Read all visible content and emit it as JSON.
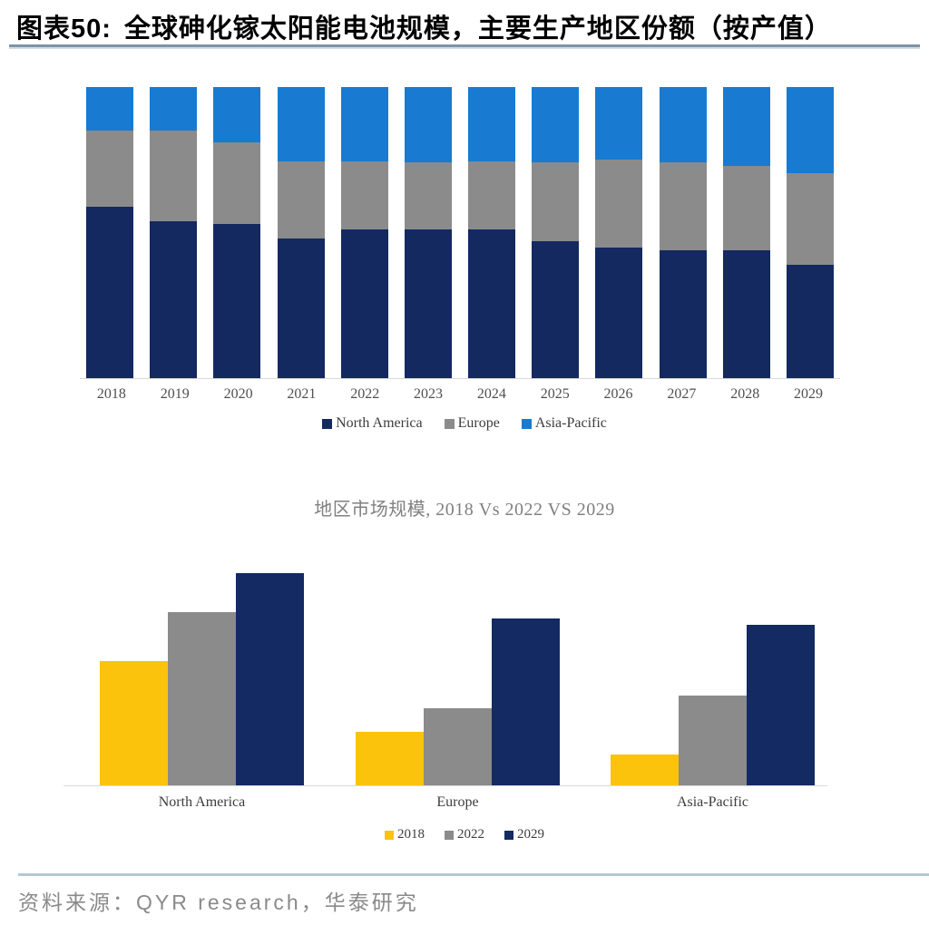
{
  "header": {
    "figure_label": "图表50:",
    "title": "全球砷化镓太阳能电池规模，主要生产地区份额（按产值）"
  },
  "chart_data": [
    {
      "type": "bar",
      "variant": "stacked-100-percent",
      "title": "",
      "categories": [
        "2018",
        "2019",
        "2020",
        "2021",
        "2022",
        "2023",
        "2024",
        "2025",
        "2026",
        "2027",
        "2028",
        "2029"
      ],
      "series": [
        {
          "name": "North America",
          "color": "#13296069",
          "values": [
            59,
            54,
            53,
            48,
            51,
            51,
            51,
            47,
            45,
            44,
            44,
            39
          ]
        },
        {
          "name": "Europe",
          "color": "#8B8B8B",
          "values": [
            26,
            31,
            28,
            26.5,
            23.5,
            23,
            23.5,
            27,
            30,
            30,
            29,
            31.5
          ]
        },
        {
          "name": "Asia-Pacific",
          "color": "#187BD1",
          "values": [
            15,
            15,
            19,
            25.5,
            25.5,
            26,
            25.5,
            26,
            25,
            26,
            27,
            29.5
          ]
        }
      ],
      "ylabel": "",
      "xlabel": "",
      "ylim": [
        0,
        100
      ],
      "grid": false,
      "legend_position": "bottom",
      "note": "values are percent shares estimated from bar segment heights; no axis labels shown in figure"
    },
    {
      "type": "bar",
      "variant": "grouped",
      "title": "地区市场规模, 2018 Vs 2022 VS 2029",
      "categories": [
        "North America",
        "Europe",
        "Asia-Pacific"
      ],
      "series": [
        {
          "name": "2018",
          "color": "#FCC30D",
          "values": [
            58.5,
            25,
            14.5
          ]
        },
        {
          "name": "2022",
          "color": "#8B8B8B",
          "values": [
            81.5,
            36.5,
            42.5
          ]
        },
        {
          "name": "2029",
          "color": "#132A62",
          "values": [
            100,
            78.5,
            75.5
          ]
        }
      ],
      "ylabel": "",
      "xlabel": "",
      "ylim": [
        0,
        103
      ],
      "grid": false,
      "legend_position": "bottom",
      "note": "relative index, largest bar (North America 2029) = 100; no axis labels shown in figure"
    }
  ],
  "colors": {
    "navy": "#132A62",
    "gray": "#8B8B8B",
    "blue": "#187BD1",
    "yellow": "#FCC30D",
    "title_rule": "#7D94A7",
    "footer_rule": "#B4C8D6",
    "axis_line": "#D9D9D9"
  },
  "footer": {
    "source": "资料来源：QYR research，华泰研究"
  }
}
